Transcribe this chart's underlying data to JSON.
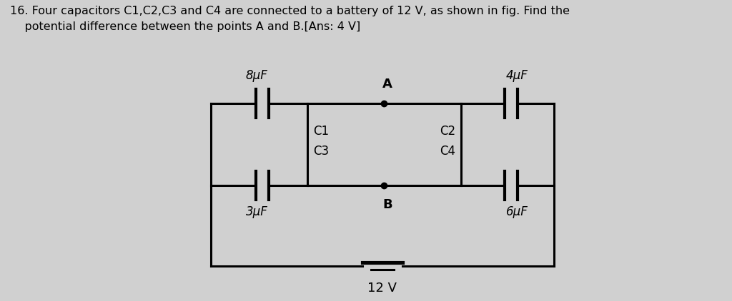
{
  "title_line1": "16. Four capacitors C1,C2,C3 and C4 are connected to a battery of 12 V, as shown in fig. Find the",
  "title_line2": "    potential difference between the points A and B.[Ans: 4 V]",
  "bg_color": "#d0d0d0",
  "text_color": "#000000",
  "circuit_color": "#000000",
  "C1_label": "C1",
  "C2_label": "C2",
  "C3_label": "C3",
  "C4_label": "C4",
  "C1_value": "8μF",
  "C2_value": "4μF",
  "C3_value": "3μF",
  "C4_value": "6μF",
  "battery_label": "12 V",
  "point_A": "A",
  "point_B": "B"
}
